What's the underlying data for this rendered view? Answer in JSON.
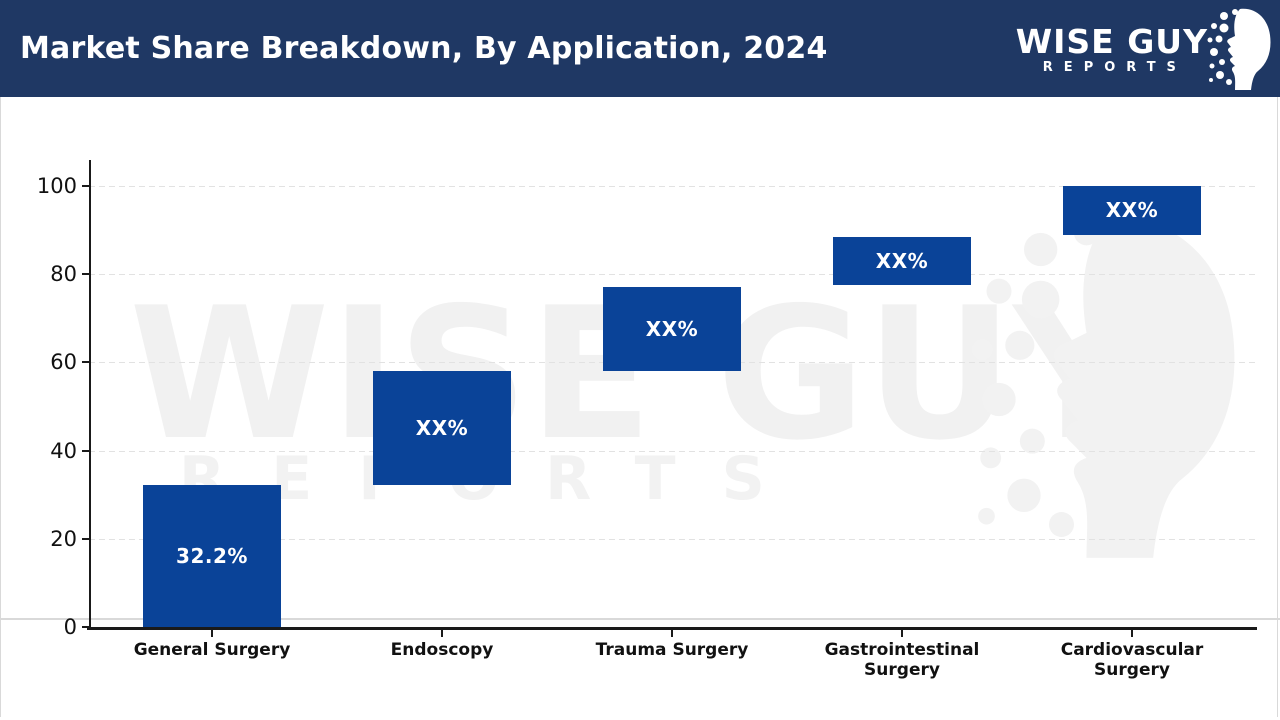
{
  "header": {
    "title": "Market Share Breakdown, By Application, 2024",
    "logo": {
      "line1": "WISE GUY",
      "line2": "REPORTS"
    }
  },
  "watermark": {
    "line1": "WISE GUY",
    "line2": "REPORTS"
  },
  "colors": {
    "header_bg": "#1f3864",
    "bar_fill": "#0a4398",
    "bar_label_text": "#ffffff",
    "axis": "#1a1a1a",
    "gridline": "#e2e2e2",
    "watermark": "#f1f1f1",
    "border": "#d9d9d9"
  },
  "chart_data": {
    "type": "bar",
    "subtype": "waterfall",
    "title": "Market Share Breakdown, By Application, 2024",
    "xlabel": "",
    "ylabel": "",
    "ylim": [
      0,
      105
    ],
    "yticks": [
      0,
      20,
      40,
      60,
      80,
      100
    ],
    "grid": "horizontal-dashed",
    "legend": "none",
    "categories": [
      "General Surgery",
      "Endoscopy",
      "Trauma Surgery",
      "Gastrointestinal Surgery",
      "Cardiovascular Surgery"
    ],
    "segments": [
      {
        "category": "General Surgery",
        "start": 0,
        "end": 32.2,
        "label": "32.2%"
      },
      {
        "category": "Endoscopy",
        "start": 32.2,
        "end": 58,
        "label": "XX%"
      },
      {
        "category": "Trauma Surgery",
        "start": 58,
        "end": 77,
        "label": "XX%"
      },
      {
        "category": "Gastrointestinal Surgery",
        "start": 77.5,
        "end": 88.5,
        "label": "XX%"
      },
      {
        "category": "Cardiovascular Surgery",
        "start": 89,
        "end": 100,
        "label": "XX%"
      }
    ]
  }
}
